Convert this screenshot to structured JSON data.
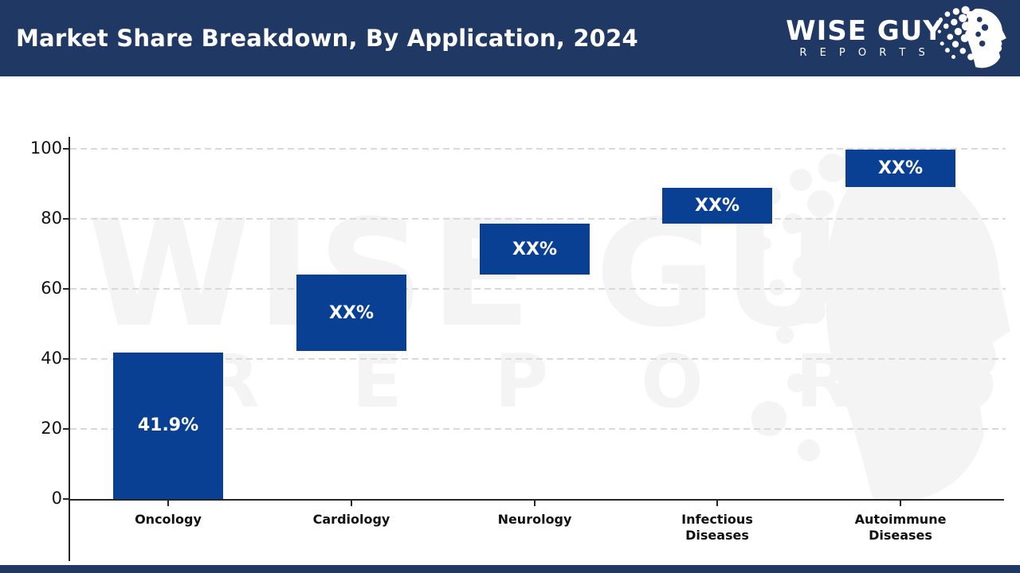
{
  "header": {
    "title": "Market Share Breakdown, By Application, 2024",
    "bg_color": "#1f3864",
    "logo": {
      "wordmark": "WISE GUY",
      "subtext": "R E P O R T S"
    }
  },
  "watermark": {
    "line1": "WISE GUY",
    "line2": "R E P O R T S"
  },
  "footer": {
    "bg_color": "#1f3864"
  },
  "chart_data": {
    "type": "bar",
    "subtype": "waterfall",
    "title": "Market Share Breakdown, By Application, 2024",
    "xlabel": "",
    "ylabel": "",
    "ylim": [
      0,
      103
    ],
    "yticks": [
      0,
      20,
      40,
      60,
      80,
      100
    ],
    "grid": "horizontal-dashed",
    "legend": "none",
    "bar_color": "#0a4094",
    "bar_label_color": "#ffffff",
    "axis_color": "#262626",
    "categories": [
      "Oncology",
      "Cardiology",
      "Neurology",
      "Infectious Diseases",
      "Autoimmune Diseases"
    ],
    "category_label_lines": [
      [
        "Oncology"
      ],
      [
        "Cardiology"
      ],
      [
        "Neurology"
      ],
      [
        "Infectious",
        "Diseases"
      ],
      [
        "Autoimmune",
        "Diseases"
      ]
    ],
    "segments": [
      {
        "category": "Oncology",
        "start": 0,
        "end": 41.9,
        "label": "41.9%"
      },
      {
        "category": "Cardiology",
        "start": 42.3,
        "end": 64.0,
        "label": "XX%"
      },
      {
        "category": "Neurology",
        "start": 64.1,
        "end": 78.6,
        "label": "XX%"
      },
      {
        "category": "Infectious Diseases",
        "start": 78.7,
        "end": 88.9,
        "label": "XX%"
      },
      {
        "category": "Autoimmune Diseases",
        "start": 89.1,
        "end": 99.8,
        "label": "XX%"
      }
    ]
  }
}
